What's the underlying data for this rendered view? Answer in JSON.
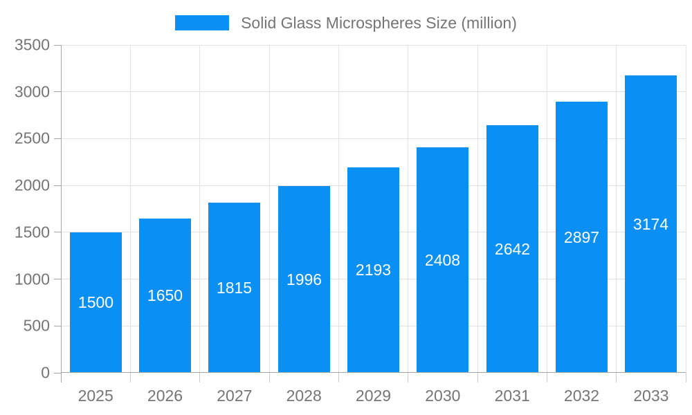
{
  "legend": {
    "label": "Solid Glass Microspheres Size (million)",
    "swatch_color": "#0a90f5"
  },
  "chart_data": {
    "type": "bar",
    "title": "",
    "xlabel": "",
    "ylabel": "",
    "categories": [
      "2025",
      "2026",
      "2027",
      "2028",
      "2029",
      "2030",
      "2031",
      "2032",
      "2033"
    ],
    "values": [
      1500,
      1650,
      1815,
      1996,
      2193,
      2408,
      2642,
      2897,
      3174
    ],
    "series_name": "Solid Glass Microspheres Size (million)",
    "ylim": [
      0,
      3500
    ],
    "ytick_step": 500,
    "ytick_labels": [
      "0",
      "500",
      "1000",
      "1500",
      "2000",
      "2500",
      "3000",
      "3500"
    ],
    "grid": true,
    "legend_position": "top",
    "bar_color": "#0a90f5",
    "value_label_color": "#ffffff",
    "axis_text_color": "#757575",
    "gridline_color": "#e3e3e3",
    "axis_line_color": "#a6a6a6",
    "bar_width_fraction": 0.75
  }
}
